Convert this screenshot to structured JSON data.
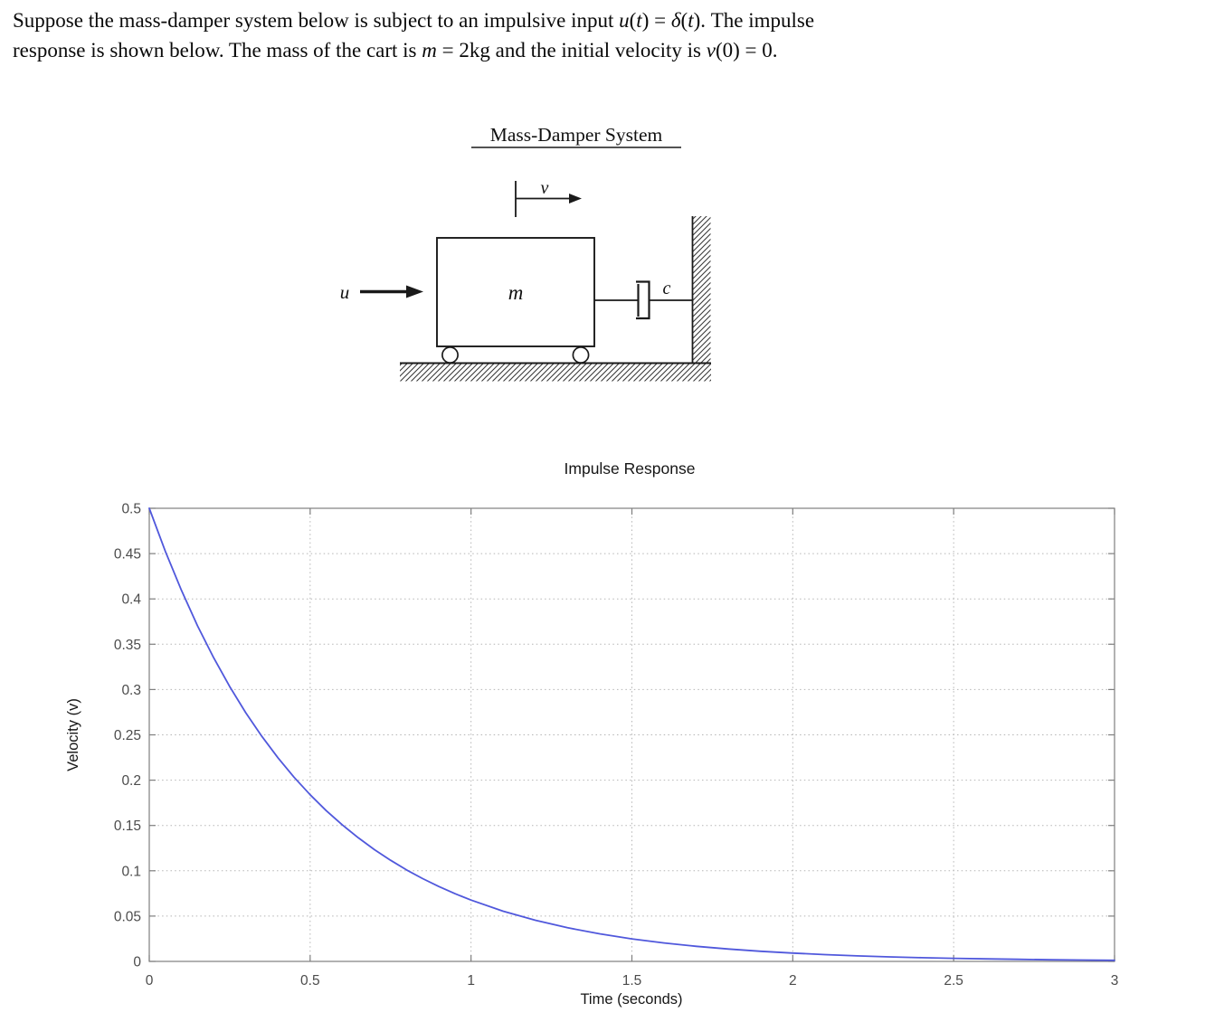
{
  "problem": {
    "line1": [
      {
        "text": "Suppose the mass-damper system below is subject to an impulsive input "
      },
      {
        "text": "u",
        "italic": true
      },
      {
        "text": "("
      },
      {
        "text": "t",
        "italic": true
      },
      {
        "text": ") = "
      },
      {
        "text": "δ",
        "italic": true
      },
      {
        "text": "("
      },
      {
        "text": "t",
        "italic": true
      },
      {
        "text": "). The impulse"
      }
    ],
    "line2": [
      {
        "text": "response is shown below. The mass of the cart is "
      },
      {
        "text": "m",
        "italic": true
      },
      {
        "text": " = 2kg and the initial velocity is "
      },
      {
        "text": "v",
        "italic": true
      },
      {
        "text": "(0) = 0."
      }
    ]
  },
  "diagram": {
    "title": "Mass-Damper System",
    "labels": {
      "input": "u",
      "mass": "m",
      "velocity": "v",
      "damper": "c"
    }
  },
  "chart_data": {
    "type": "line",
    "title": "Impulse Response",
    "xlabel": "Time (seconds)",
    "ylabel": "Velocity (v)",
    "xlim": [
      0,
      3
    ],
    "ylim": [
      0,
      0.5
    ],
    "xticks": [
      0,
      0.5,
      1,
      1.5,
      2,
      2.5,
      3
    ],
    "xtick_labels": [
      "0",
      "0.5",
      "1",
      "1.5",
      "2",
      "2.5",
      "3"
    ],
    "yticks": [
      0,
      0.05,
      0.1,
      0.15,
      0.2,
      0.25,
      0.3,
      0.35,
      0.4,
      0.45,
      0.5
    ],
    "ytick_labels": [
      "0",
      "0.05",
      "0.1",
      "0.15",
      "0.2",
      "0.25",
      "0.3",
      "0.35",
      "0.4",
      "0.45",
      "0.5"
    ],
    "grid": "dotted",
    "legend": "none",
    "line_color": "#5058DC",
    "series": [
      {
        "name": "impulse response velocity",
        "x": [
          0,
          0.05,
          0.1,
          0.15,
          0.2,
          0.25,
          0.3,
          0.35,
          0.4,
          0.45,
          0.5,
          0.55,
          0.6,
          0.65,
          0.7,
          0.75,
          0.8,
          0.85,
          0.9,
          0.95,
          1.0,
          1.1,
          1.2,
          1.3,
          1.4,
          1.5,
          1.6,
          1.7,
          1.8,
          1.9,
          2.0,
          2.1,
          2.2,
          2.3,
          2.4,
          2.5,
          2.6,
          2.7,
          2.8,
          2.9,
          3.0
        ],
        "y": [
          0.5,
          0.4524,
          0.4094,
          0.3704,
          0.3352,
          0.3033,
          0.2744,
          0.2483,
          0.2247,
          0.2033,
          0.1839,
          0.1664,
          0.1506,
          0.1363,
          0.1233,
          0.1116,
          0.1009,
          0.0913,
          0.0826,
          0.0748,
          0.0677,
          0.0554,
          0.0454,
          0.0371,
          0.0304,
          0.0249,
          0.0204,
          0.0167,
          0.0137,
          0.0112,
          0.0092,
          0.0075,
          0.0061,
          0.005,
          0.0041,
          0.0034,
          0.0028,
          0.0023,
          0.0018,
          0.0015,
          0.0012
        ]
      }
    ]
  },
  "colors": {
    "curve_blue": "#5058DC",
    "axis_gray": "#7f7f7f",
    "grid_gray": "#b5b5b5",
    "tick_label_gray": "#4c4c4c",
    "ink": "#1a1a1a"
  }
}
